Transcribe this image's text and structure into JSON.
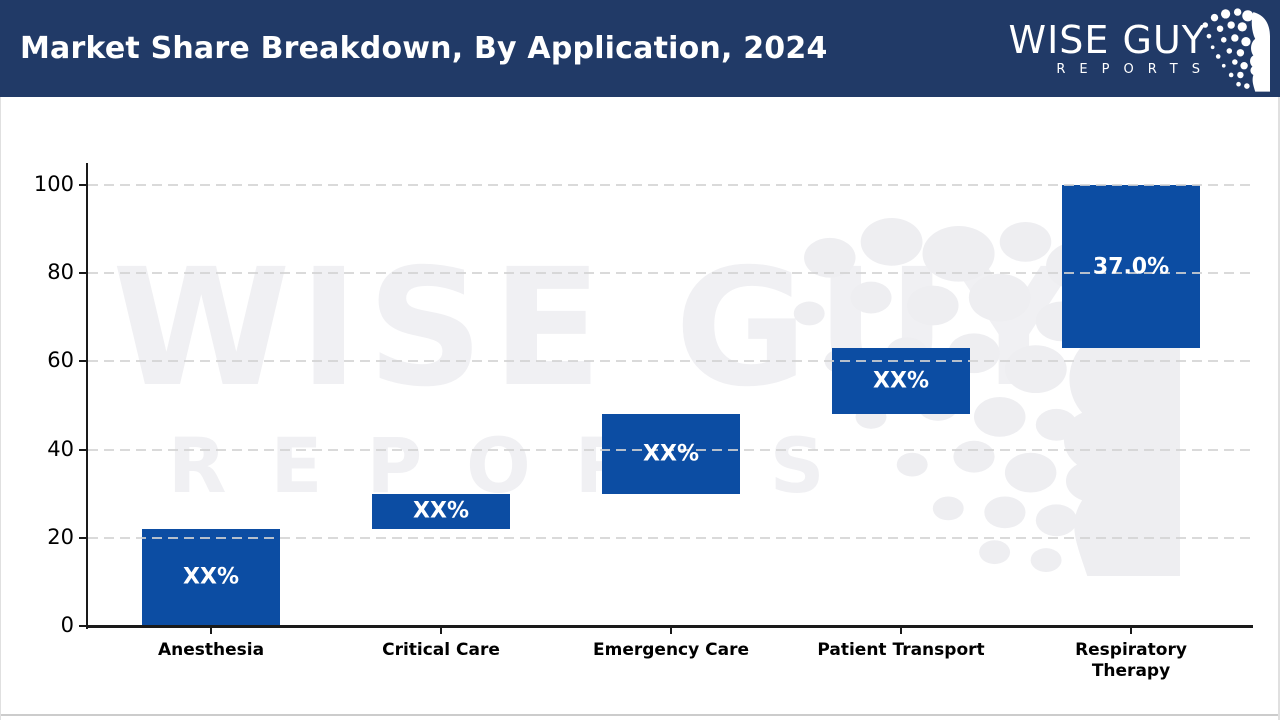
{
  "header": {
    "title": "Market Share Breakdown, By Application, 2024",
    "logo": {
      "line1": "WISE GUY",
      "line2": "REPORTS"
    }
  },
  "watermark": {
    "line1": "WISE GUY",
    "line2": "REPORTS"
  },
  "chart_data": {
    "type": "bar",
    "variant": "floating-waterfall",
    "title": "Market Share Breakdown, By Application, 2024",
    "categories": [
      "Anesthesia",
      "Critical Care",
      "Emergency Care",
      "Patient Transport",
      "Respiratory Therapy"
    ],
    "x_tick_labels": [
      "Anesthesia",
      "Critical Care",
      "Emergency Care",
      "Patient Transport",
      "Respiratory\nTherapy"
    ],
    "bars": [
      {
        "category": "Anesthesia",
        "start": 0,
        "end": 22,
        "value": 22,
        "label": "XX%"
      },
      {
        "category": "Critical Care",
        "start": 22,
        "end": 30,
        "value": 8,
        "label": "XX%"
      },
      {
        "category": "Emergency Care",
        "start": 30,
        "end": 48,
        "value": 18,
        "label": "XX%"
      },
      {
        "category": "Patient Transport",
        "start": 48,
        "end": 63,
        "value": 15,
        "label": "XX%"
      },
      {
        "category": "Respiratory Therapy",
        "start": 63,
        "end": 100,
        "value": 37,
        "label": "37.0%"
      }
    ],
    "xlabel": "",
    "ylabel": "",
    "ylim": [
      0,
      100
    ],
    "yticks": [
      0,
      20,
      40,
      60,
      80,
      100
    ],
    "grid": "horizontal dashed, drawn over bars",
    "legend": "none",
    "colors": {
      "bar": "#0c4da3",
      "header": "#213a67",
      "grid": "#d3d3d3",
      "axis": "#1a1a1a",
      "watermark": "#f0f0f3"
    }
  }
}
